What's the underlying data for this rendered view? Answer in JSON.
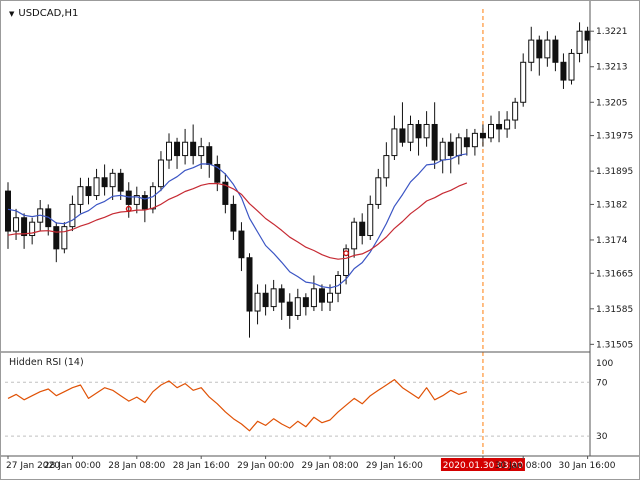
{
  "chart_data": {
    "type": "candlestick",
    "symbol_label": "USDCAD,H1",
    "timeframe": "H1",
    "bounds": {
      "price_max": 1.3226,
      "price_min": 1.3149
    },
    "price_axis": {
      "labels": [
        {
          "text": "1.3221",
          "value": 1.3221
        },
        {
          "text": "1.3213",
          "value": 1.3213
        },
        {
          "text": "1.3205",
          "value": 1.3205
        },
        {
          "text": "1.31975",
          "value": 1.31975
        },
        {
          "text": "1.31895",
          "value": 1.31895
        },
        {
          "text": "1.3182",
          "value": 1.3182
        },
        {
          "text": "1.3174",
          "value": 1.3174
        },
        {
          "text": "1.31665",
          "value": 1.31665
        },
        {
          "text": "1.31585",
          "value": 1.31585
        },
        {
          "text": "1.31505",
          "value": 1.31505
        }
      ]
    },
    "time_axis": {
      "labels": [
        {
          "index": 0,
          "text": "27 Jan 2020"
        },
        {
          "index": 8,
          "text": "28 Jan 00:00"
        },
        {
          "index": 16,
          "text": "28 Jan 08:00"
        },
        {
          "index": 24,
          "text": "28 Jan 16:00"
        },
        {
          "index": 32,
          "text": "29 Jan 00:00"
        },
        {
          "index": 40,
          "text": "29 Jan 08:00"
        },
        {
          "index": 48,
          "text": "29 Jan 16:00"
        },
        {
          "index": 59,
          "text": "2020.01.30 03:00",
          "highlight": true
        },
        {
          "index": 64,
          "text": "30 Jan 08:00"
        },
        {
          "index": 72,
          "text": "30 Jan 16:00"
        }
      ],
      "highlight_bg": "#d40000",
      "highlight_fg": "#ffffff"
    },
    "candles": [
      [
        1.3185,
        1.3187,
        1.3172,
        1.3176
      ],
      [
        1.3176,
        1.3181,
        1.3174,
        1.3179
      ],
      [
        1.3179,
        1.318,
        1.3172,
        1.3175
      ],
      [
        1.3175,
        1.3179,
        1.3173,
        1.3178
      ],
      [
        1.3178,
        1.3183,
        1.3176,
        1.3181
      ],
      [
        1.3181,
        1.3182,
        1.3175,
        1.3177
      ],
      [
        1.3177,
        1.3178,
        1.3169,
        1.3172
      ],
      [
        1.3172,
        1.3178,
        1.3171,
        1.3177
      ],
      [
        1.3177,
        1.3184,
        1.3176,
        1.3182
      ],
      [
        1.3182,
        1.3188,
        1.318,
        1.3186
      ],
      [
        1.3186,
        1.3188,
        1.3182,
        1.3184
      ],
      [
        1.3184,
        1.319,
        1.3183,
        1.3188
      ],
      [
        1.3188,
        1.3191,
        1.3184,
        1.3186
      ],
      [
        1.3186,
        1.319,
        1.3183,
        1.3189
      ],
      [
        1.3189,
        1.319,
        1.3183,
        1.3185
      ],
      [
        1.3185,
        1.3187,
        1.3179,
        1.3182
      ],
      [
        1.3182,
        1.3186,
        1.318,
        1.3184
      ],
      [
        1.3184,
        1.3185,
        1.3178,
        1.3181
      ],
      [
        1.3181,
        1.3187,
        1.318,
        1.3186
      ],
      [
        1.3186,
        1.3194,
        1.3185,
        1.3192
      ],
      [
        1.3192,
        1.3198,
        1.319,
        1.3196
      ],
      [
        1.3196,
        1.3197,
        1.319,
        1.3193
      ],
      [
        1.3193,
        1.3199,
        1.3191,
        1.3196
      ],
      [
        1.3196,
        1.32,
        1.3191,
        1.3193
      ],
      [
        1.3193,
        1.3197,
        1.319,
        1.3195
      ],
      [
        1.3195,
        1.3196,
        1.3188,
        1.3191
      ],
      [
        1.3191,
        1.3193,
        1.3185,
        1.3187
      ],
      [
        1.3187,
        1.3189,
        1.318,
        1.3182
      ],
      [
        1.3182,
        1.3184,
        1.3174,
        1.3176
      ],
      [
        1.3176,
        1.3178,
        1.3167,
        1.317
      ],
      [
        1.317,
        1.3171,
        1.3152,
        1.3158
      ],
      [
        1.3158,
        1.3164,
        1.3155,
        1.3162
      ],
      [
        1.3162,
        1.3164,
        1.3157,
        1.3159
      ],
      [
        1.3159,
        1.3165,
        1.3158,
        1.3163
      ],
      [
        1.3163,
        1.3164,
        1.3156,
        1.316
      ],
      [
        1.316,
        1.3162,
        1.3154,
        1.3157
      ],
      [
        1.3157,
        1.3163,
        1.3156,
        1.3161
      ],
      [
        1.3161,
        1.3162,
        1.3157,
        1.3159
      ],
      [
        1.3159,
        1.3166,
        1.3158,
        1.3163
      ],
      [
        1.3163,
        1.3164,
        1.3158,
        1.316
      ],
      [
        1.316,
        1.3164,
        1.3158,
        1.3162
      ],
      [
        1.3162,
        1.3167,
        1.316,
        1.3166
      ],
      [
        1.3166,
        1.3173,
        1.3164,
        1.3172
      ],
      [
        1.3172,
        1.3179,
        1.317,
        1.3178
      ],
      [
        1.3178,
        1.318,
        1.3173,
        1.3175
      ],
      [
        1.3175,
        1.3184,
        1.3174,
        1.3182
      ],
      [
        1.3182,
        1.319,
        1.3181,
        1.3188
      ],
      [
        1.3188,
        1.3196,
        1.3186,
        1.3193
      ],
      [
        1.3193,
        1.3202,
        1.3192,
        1.3199
      ],
      [
        1.3199,
        1.3205,
        1.3195,
        1.3196
      ],
      [
        1.3196,
        1.3202,
        1.3194,
        1.32
      ],
      [
        1.32,
        1.3201,
        1.3193,
        1.3197
      ],
      [
        1.3197,
        1.3203,
        1.3195,
        1.32
      ],
      [
        1.32,
        1.3205,
        1.319,
        1.3192
      ],
      [
        1.3192,
        1.3197,
        1.3189,
        1.3196
      ],
      [
        1.3196,
        1.3198,
        1.3189,
        1.3193
      ],
      [
        1.3193,
        1.3198,
        1.3191,
        1.3197
      ],
      [
        1.3197,
        1.3199,
        1.3193,
        1.3195
      ],
      [
        1.3195,
        1.3199,
        1.3193,
        1.3198
      ],
      [
        1.3198,
        1.32,
        1.3195,
        1.3197
      ],
      [
        1.3197,
        1.3202,
        1.3196,
        1.32
      ],
      [
        1.32,
        1.3203,
        1.3196,
        1.3199
      ],
      [
        1.3199,
        1.3203,
        1.3197,
        1.3201
      ],
      [
        1.3201,
        1.3206,
        1.3199,
        1.3205
      ],
      [
        1.3205,
        1.3216,
        1.3204,
        1.3214
      ],
      [
        1.3214,
        1.3222,
        1.3212,
        1.3219
      ],
      [
        1.3219,
        1.322,
        1.3211,
        1.3215
      ],
      [
        1.3215,
        1.3221,
        1.3213,
        1.3219
      ],
      [
        1.3219,
        1.322,
        1.3212,
        1.3214
      ],
      [
        1.3214,
        1.3216,
        1.3208,
        1.321
      ],
      [
        1.321,
        1.3217,
        1.3209,
        1.3216
      ],
      [
        1.3216,
        1.3223,
        1.3214,
        1.3221
      ],
      [
        1.3221,
        1.3222,
        1.3216,
        1.3219
      ]
    ],
    "cutoff_index": 57,
    "overlays": [
      {
        "name": "ma-fast",
        "type": "ema",
        "period": 10,
        "seed": 1.3182,
        "color": "#3b55c4",
        "width": 1.2
      },
      {
        "name": "ma-slow",
        "type": "ema",
        "period": 24,
        "seed": 1.3175,
        "color": "#c62a33",
        "width": 1.2
      }
    ],
    "markers": [
      {
        "index": 15,
        "price": 1.3181,
        "color": "#cc1111"
      },
      {
        "index": 42,
        "price": 1.3171,
        "color": "#cc1111"
      }
    ],
    "vline": {
      "index": 59,
      "color": "#ff9333"
    },
    "indicator": {
      "name": "Hidden RSI (14)",
      "color": "#e05206",
      "levels": [
        100,
        70,
        30
      ],
      "level_lines": [
        70,
        30
      ],
      "scale": {
        "min": 19,
        "max": 88
      },
      "values": [
        58,
        61,
        57,
        60,
        63,
        65,
        60,
        63,
        66,
        68,
        58,
        62,
        66,
        64,
        60,
        56,
        59,
        55,
        63,
        68,
        71,
        66,
        69,
        64,
        66,
        59,
        54,
        48,
        43,
        39,
        34,
        41,
        38,
        43,
        39,
        36,
        41,
        37,
        44,
        40,
        42,
        48,
        53,
        58,
        54,
        60,
        64,
        68,
        72,
        66,
        62,
        58,
        66,
        57,
        60,
        64,
        61,
        63
      ]
    },
    "colors": {
      "candle_up_fill": "#ffffff",
      "candle_down_fill": "#111111",
      "candle_stroke": "#111111",
      "axis_text": "#1a1a1a",
      "grid_dashed": "#c0c0c0",
      "pane_separator": "#555555"
    }
  }
}
